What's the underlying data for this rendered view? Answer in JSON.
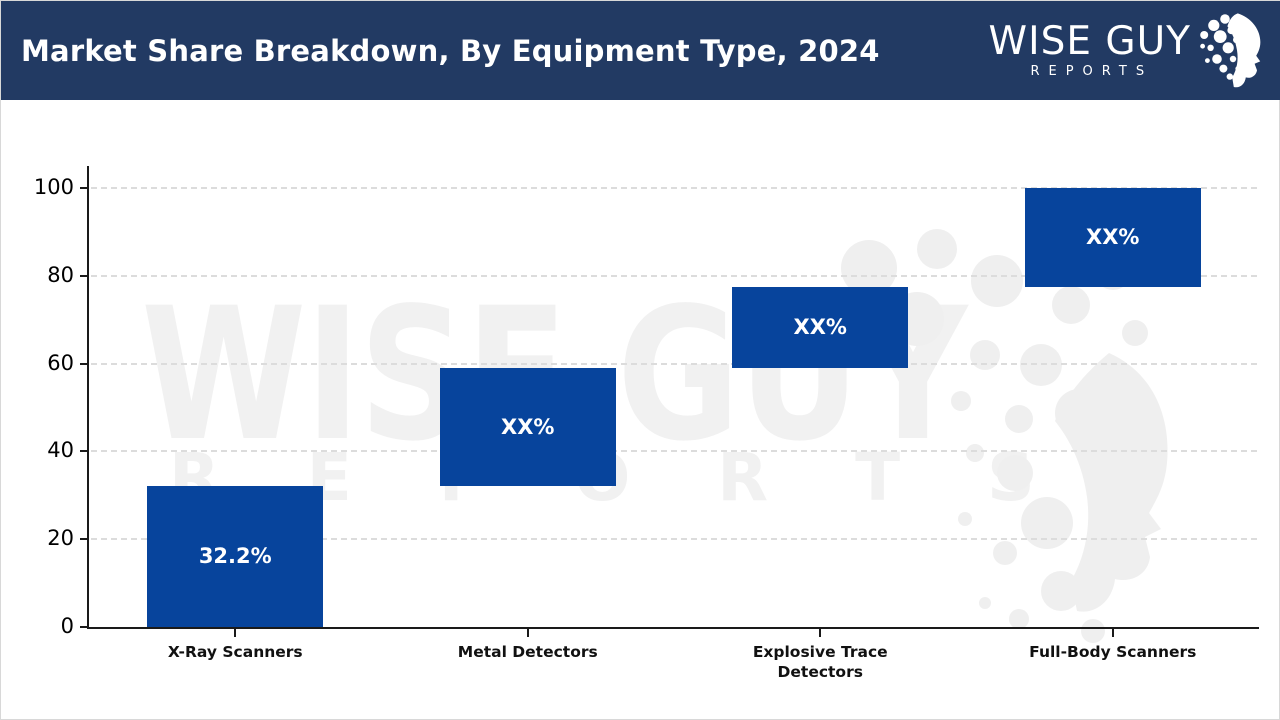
{
  "header": {
    "title": "Market Share Breakdown, By Equipment Type, 2024",
    "logo": {
      "line1": "WISE GUY",
      "line2": "REPORTS"
    }
  },
  "watermark": {
    "line1": "WISE GUY",
    "line2": "R E P O R T S"
  },
  "chart_data": {
    "type": "bar",
    "subtype": "waterfall",
    "title": "Market Share Breakdown, By Equipment Type, 2024",
    "categories": [
      "X-Ray Scanners",
      "Metal Detectors",
      "Explosive Trace Detectors",
      "Full-Body Scanners"
    ],
    "segments": [
      {
        "category": "X-Ray Scanners",
        "start": 0,
        "end": 32.2,
        "label": "32.2%"
      },
      {
        "category": "Metal Detectors",
        "start": 32.2,
        "end": 59,
        "label": "XX%"
      },
      {
        "category": "Explosive Trace Detectors",
        "start": 59,
        "end": 77.5,
        "label": "XX%"
      },
      {
        "category": "Full-Body Scanners",
        "start": 77.5,
        "end": 100,
        "label": "XX%"
      }
    ],
    "yticks": [
      0,
      20,
      40,
      60,
      80,
      100
    ],
    "ylim": [
      0,
      100
    ],
    "xlabel": "",
    "ylabel": "",
    "grid": "horizontal-dashed",
    "legend": "none",
    "bar_color": "#07449c",
    "bar_label_color": "#ffffff"
  },
  "colors": {
    "header_bg": "#223a63",
    "bar": "#07449c",
    "gridline": "#dcdcdc",
    "watermark": "#f1f1f1"
  }
}
